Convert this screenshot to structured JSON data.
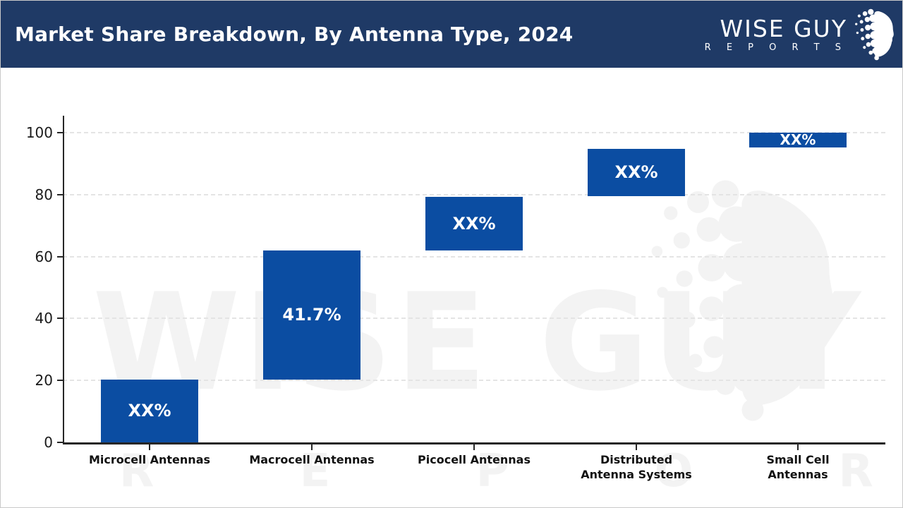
{
  "header": {
    "title": "Market Share Breakdown, By Antenna Type, 2024",
    "bg_color": "#1F3A66",
    "logo": {
      "line1": "WISE GUY",
      "line2": "R E P O R T S"
    }
  },
  "watermark": {
    "line1": "WISE GUY",
    "line2": "R E P O R T S"
  },
  "chart_data": {
    "type": "bar",
    "subtype": "waterfall",
    "title": "",
    "xlabel": "",
    "ylabel": "",
    "categories": [
      "Microcell Antennas",
      "Macrocell Antennas",
      "Picocell Antennas",
      "Distributed Antenna Systems",
      "Small Cell Antennas"
    ],
    "category_lines": [
      [
        "Microcell Antennas"
      ],
      [
        "Macrocell Antennas"
      ],
      [
        "Picocell Antennas"
      ],
      [
        "Distributed",
        "Antenna Systems"
      ],
      [
        "Small Cell",
        "Antennas"
      ]
    ],
    "segments": [
      {
        "start": 0,
        "end": 20.3,
        "label": "XX%"
      },
      {
        "start": 20.3,
        "end": 62.0,
        "label": "41.7%"
      },
      {
        "start": 62.0,
        "end": 79.3,
        "label": "XX%"
      },
      {
        "start": 79.5,
        "end": 94.8,
        "label": "XX%"
      },
      {
        "start": 95.3,
        "end": 100.0,
        "label": "XX%"
      }
    ],
    "values": [
      20.3,
      41.7,
      17.3,
      15.3,
      4.7
    ],
    "yticks": [
      0,
      20,
      40,
      60,
      80,
      100
    ],
    "ylim": [
      0,
      105
    ],
    "grid": true,
    "grid_style": "dashed",
    "legend": false,
    "bar_color": "#0B4DA2",
    "bar_label_color": "#FFFFFF",
    "axis_color": "#262626",
    "tick_label_color": "#1a1a1a"
  }
}
